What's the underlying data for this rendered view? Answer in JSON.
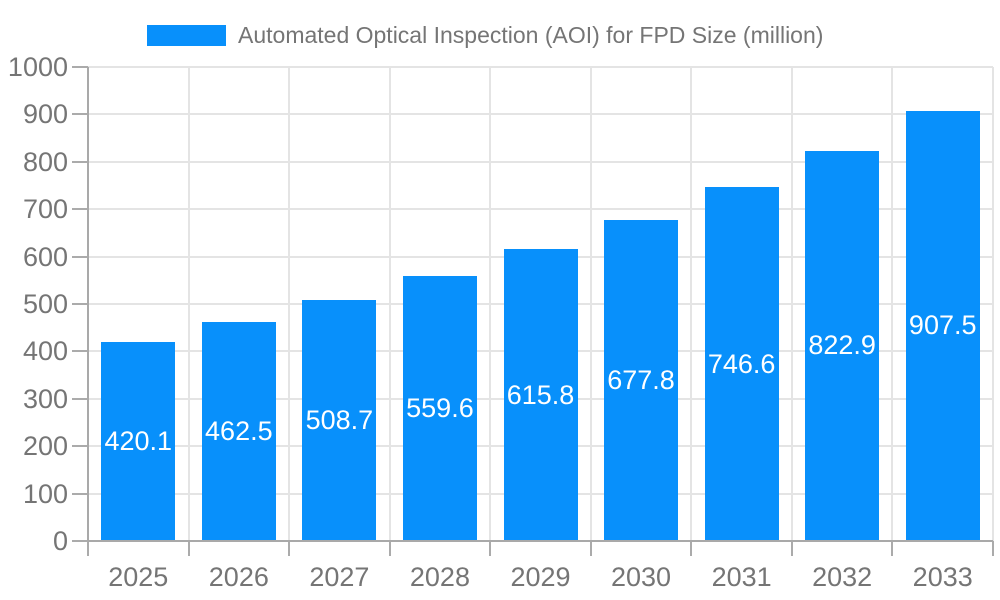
{
  "chart_data": {
    "type": "bar",
    "title": "Automated Optical Inspection (AOI) for FPD Size (million)",
    "categories": [
      "2025",
      "2026",
      "2027",
      "2028",
      "2029",
      "2030",
      "2031",
      "2032",
      "2033"
    ],
    "values": [
      420.1,
      462.5,
      508.7,
      559.6,
      615.8,
      677.8,
      746.6,
      822.9,
      907.5
    ],
    "xlabel": "",
    "ylabel": "",
    "ylim": [
      0,
      1000
    ],
    "ytick_step": 100,
    "grid": true,
    "legend_position": "top",
    "value_label_position": "inside-center",
    "colors": {
      "bar": "#0890FB",
      "value_label": "#FFFFFF",
      "axis_text": "#757575",
      "legend_text": "#757575",
      "gridline": "#E4E4E4",
      "axis_line": "#A9A9A9",
      "tick": "#ABABAB",
      "background": "#FFFFFF"
    }
  }
}
